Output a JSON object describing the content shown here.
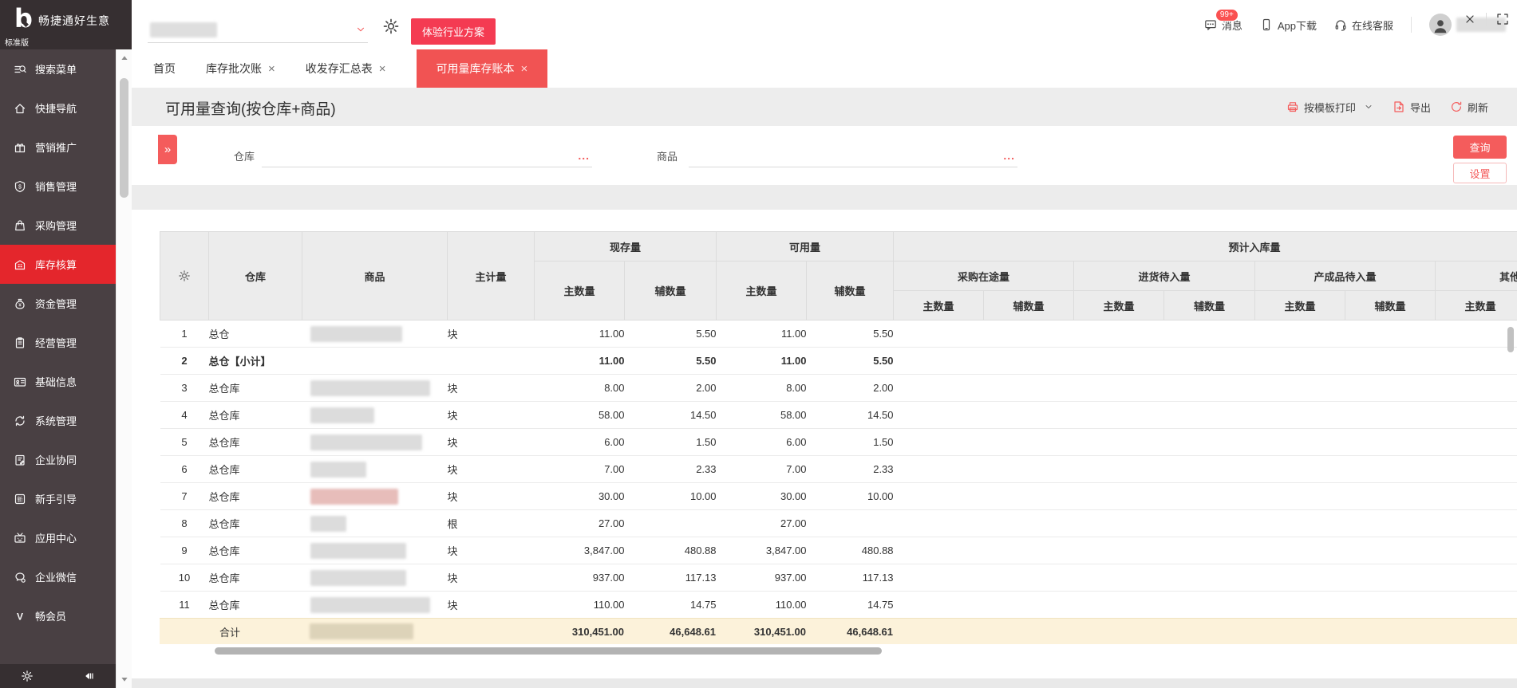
{
  "brand": {
    "name": "畅捷通好生意",
    "edition": "标准版"
  },
  "topbar": {
    "experience_button": "体验行业方案",
    "messages_label": "消息",
    "messages_badge": "99+",
    "app_download_label": "App下载",
    "support_label": "在线客服"
  },
  "sidebar": {
    "items": [
      {
        "id": "search-menu",
        "icon": "search-menu",
        "label": "搜索菜单",
        "active": false
      },
      {
        "id": "quick-nav",
        "icon": "home",
        "label": "快捷导航",
        "active": false
      },
      {
        "id": "marketing",
        "icon": "gift",
        "label": "营销推广",
        "active": false
      },
      {
        "id": "sales",
        "icon": "sales",
        "label": "销售管理",
        "active": false
      },
      {
        "id": "purchase",
        "icon": "purchase",
        "label": "采购管理",
        "active": false
      },
      {
        "id": "inventory",
        "icon": "inventory",
        "label": "库存核算",
        "active": true
      },
      {
        "id": "funds",
        "icon": "funds",
        "label": "资金管理",
        "active": false
      },
      {
        "id": "operations",
        "icon": "operations",
        "label": "经营管理",
        "active": false
      },
      {
        "id": "base-info",
        "icon": "base-info",
        "label": "基础信息",
        "active": false
      },
      {
        "id": "system",
        "icon": "system",
        "label": "系统管理",
        "active": false
      },
      {
        "id": "collab",
        "icon": "collab",
        "label": "企业协同",
        "active": false
      },
      {
        "id": "newbie",
        "icon": "newbie",
        "label": "新手引导",
        "active": false
      },
      {
        "id": "app-center",
        "icon": "app-center",
        "label": "应用中心",
        "active": false
      },
      {
        "id": "wecom",
        "icon": "wecom",
        "label": "企业微信",
        "active": false
      },
      {
        "id": "member",
        "icon": "member",
        "label": "畅会员",
        "active": false
      }
    ]
  },
  "tabs": [
    {
      "label": "首页",
      "closable": false,
      "active": false
    },
    {
      "label": "库存批次账",
      "closable": true,
      "active": false
    },
    {
      "label": "收发存汇总表",
      "closable": true,
      "active": false
    },
    {
      "label": "可用量库存账本",
      "closable": true,
      "active": true
    }
  ],
  "page": {
    "title": "可用量查询(按仓库+商品)",
    "toolbar": {
      "print": "按模板打印",
      "export": "导出",
      "refresh": "刷新"
    }
  },
  "filters": {
    "warehouse_label": "仓库",
    "product_label": "商品",
    "more": "...",
    "query_button": "查询",
    "settings_button": "设置",
    "expand_glyph": "»"
  },
  "table": {
    "header": {
      "warehouse": "仓库",
      "product": "商品",
      "unit": "主计量",
      "groups": [
        "现存量",
        "可用量"
      ],
      "expected_group": "预计入库量",
      "expected_subgroups": [
        "采购在途量",
        "进货待入量",
        "产成品待入量",
        "其他待入量"
      ],
      "qty_main": "主数量",
      "qty_aux": "辅数量"
    },
    "rows": [
      {
        "num": "1",
        "warehouse": "总仓",
        "unit": "块",
        "qty": [
          "11.00",
          "5.50",
          "11.00",
          "5.50"
        ],
        "style": "normal",
        "redact_width": 115
      },
      {
        "num": "2",
        "warehouse": "总仓【小计】",
        "unit": "",
        "qty": [
          "11.00",
          "5.50",
          "11.00",
          "5.50"
        ],
        "style": "subtotal",
        "redact_width": 0
      },
      {
        "num": "3",
        "warehouse": "总仓库",
        "unit": "块",
        "qty": [
          "8.00",
          "2.00",
          "8.00",
          "2.00"
        ],
        "style": "normal",
        "redact_width": 150
      },
      {
        "num": "4",
        "warehouse": "总仓库",
        "unit": "块",
        "qty": [
          "58.00",
          "14.50",
          "58.00",
          "14.50"
        ],
        "style": "normal",
        "redact_width": 80
      },
      {
        "num": "5",
        "warehouse": "总仓库",
        "unit": "块",
        "qty": [
          "6.00",
          "1.50",
          "6.00",
          "1.50"
        ],
        "style": "normal",
        "redact_width": 140
      },
      {
        "num": "6",
        "warehouse": "总仓库",
        "unit": "块",
        "qty": [
          "7.00",
          "2.33",
          "7.00",
          "2.33"
        ],
        "style": "normal",
        "redact_width": 70
      },
      {
        "num": "7",
        "warehouse": "总仓库",
        "unit": "块",
        "qty": [
          "30.00",
          "10.00",
          "30.00",
          "10.00"
        ],
        "style": "highlight",
        "redact_width": 110
      },
      {
        "num": "8",
        "warehouse": "总仓库",
        "unit": "根",
        "qty": [
          "27.00",
          "",
          "27.00",
          ""
        ],
        "style": "normal",
        "redact_width": 45
      },
      {
        "num": "9",
        "warehouse": "总仓库",
        "unit": "块",
        "qty": [
          "3,847.00",
          "480.88",
          "3,847.00",
          "480.88"
        ],
        "style": "normal",
        "redact_width": 120
      },
      {
        "num": "10",
        "warehouse": "总仓库",
        "unit": "块",
        "qty": [
          "937.00",
          "117.13",
          "937.00",
          "117.13"
        ],
        "style": "normal",
        "redact_width": 120
      },
      {
        "num": "11",
        "warehouse": "总仓库",
        "unit": "块",
        "qty": [
          "110.00",
          "14.75",
          "110.00",
          "14.75"
        ],
        "style": "normal",
        "redact_width": 150
      }
    ],
    "total_row": {
      "label": "合计",
      "qty": [
        "310,451.00",
        "46,648.61",
        "310,451.00",
        "46,648.61"
      ]
    }
  },
  "colors": {
    "accent": "#f45c5c",
    "sidebar_active": "#e4262c",
    "brand_button": "#f43b52",
    "badge": "#fa5151",
    "sidebar_bg": "#494043",
    "sidebar_dark": "#362f31",
    "title_band": "#ededed",
    "table_header_bg": "#ececec",
    "highlight_row": "#fad9d7",
    "subtotal_row": "#ececec",
    "total_row": "#fcf2da"
  }
}
